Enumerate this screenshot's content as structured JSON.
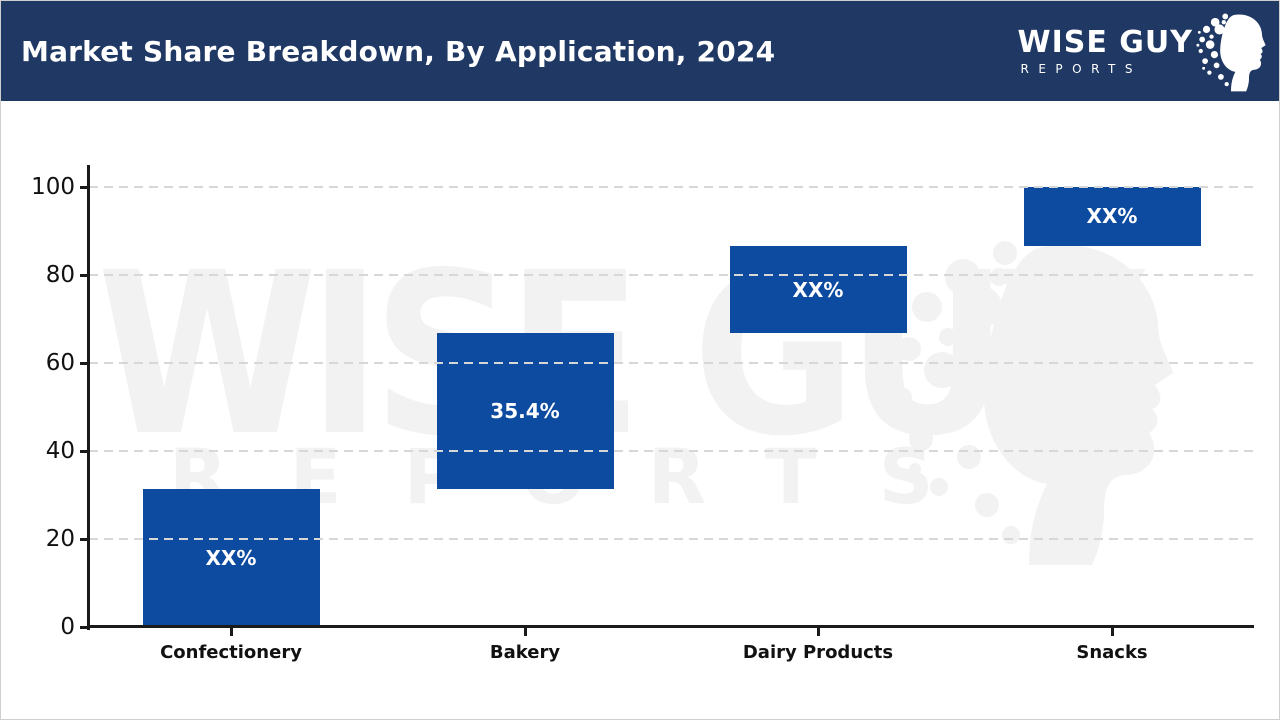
{
  "header": {
    "title": "Market Share Breakdown, By Application, 2024",
    "bg_color": "#1f3864",
    "logo": {
      "wordmark": "WISE GUY",
      "subtext": "REPORTS"
    }
  },
  "watermark": {
    "wordmark": "WISE GUY",
    "subtext": "REPORTS"
  },
  "chart_data": {
    "type": "bar",
    "subtype": "waterfall",
    "title": "Market Share Breakdown, By Application, 2024",
    "xlabel": "",
    "ylabel": "",
    "categories": [
      "Confectionery",
      "Bakery",
      "Dairy Products",
      "Snacks"
    ],
    "segments": [
      {
        "category": "Confectionery",
        "start": 0,
        "end": 31.4,
        "label": "XX%"
      },
      {
        "category": "Bakery",
        "start": 31.4,
        "end": 66.8,
        "label": "35.4%",
        "value": 35.4
      },
      {
        "category": "Dairy Products",
        "start": 66.8,
        "end": 86.6,
        "label": "XX%"
      },
      {
        "category": "Snacks",
        "start": 86.6,
        "end": 100.0,
        "label": "XX%"
      }
    ],
    "yticks": [
      0,
      20,
      40,
      60,
      80,
      100
    ],
    "ylim": [
      0,
      105
    ],
    "grid": "horizontal-dashed",
    "legend": "none",
    "bar_color": "#0d4ba0",
    "bar_label_color": "#ffffff",
    "axis_color": "#1a1a1a",
    "gridline_color": "#d7d7d7",
    "watermark_color": "#f2f2f2"
  }
}
